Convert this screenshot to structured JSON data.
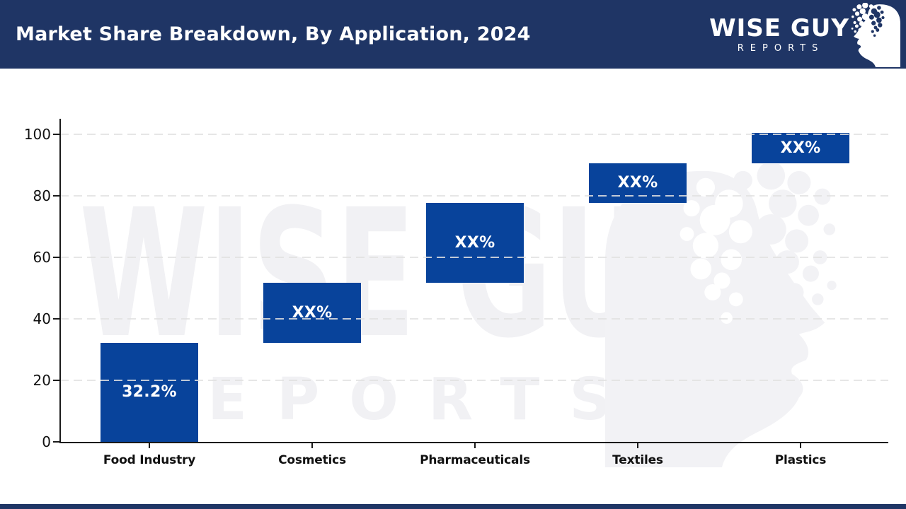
{
  "header": {
    "title": "Market Share Breakdown, By Application, 2024",
    "logo_line1": "WISE GUY",
    "logo_line2": "REPORTS"
  },
  "watermark": {
    "line1": "WISE GUY",
    "line2": "REPORTS"
  },
  "chart_data": {
    "type": "bar",
    "subtype": "waterfall",
    "title": "Market Share Breakdown, By Application, 2024",
    "xlabel": "",
    "ylabel": "",
    "categories": [
      "Food Industry",
      "Cosmetics",
      "Pharmaceuticals",
      "Textiles",
      "Plastics"
    ],
    "segments": [
      {
        "category": "Food Industry",
        "start": 0,
        "end": 32.2,
        "label": "32.2%"
      },
      {
        "category": "Cosmetics",
        "start": 32.2,
        "end": 51.7,
        "label": "XX%"
      },
      {
        "category": "Pharmaceuticals",
        "start": 51.7,
        "end": 77.7,
        "label": "XX%"
      },
      {
        "category": "Textiles",
        "start": 77.7,
        "end": 90.6,
        "label": "XX%"
      },
      {
        "category": "Plastics",
        "start": 90.6,
        "end": 100.5,
        "label": "XX%"
      }
    ],
    "y_ticks": [
      0,
      20,
      40,
      60,
      80,
      100
    ],
    "ylim": [
      0,
      105
    ],
    "grid": "horizontal-dashed",
    "legend": "none"
  },
  "colors": {
    "header_bg": "#1f3565",
    "footer_bg": "#1f3565",
    "bar": "#08439b",
    "grid": "#e3e3e3",
    "axis": "#1a1a1a",
    "watermark": "#f1f1f4"
  }
}
